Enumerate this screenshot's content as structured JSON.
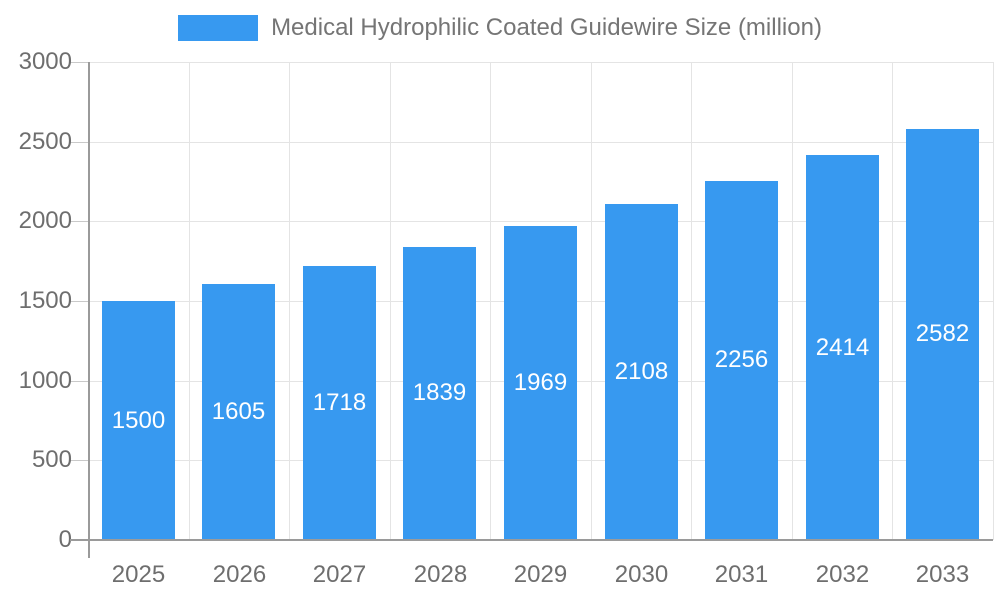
{
  "chart_data": {
    "type": "bar",
    "title": "Medical Hydrophilic Coated Guidewire Size (million)",
    "categories": [
      "2025",
      "2026",
      "2027",
      "2028",
      "2029",
      "2030",
      "2031",
      "2032",
      "2033"
    ],
    "values": [
      1500,
      1605,
      1718,
      1839,
      1969,
      2108,
      2256,
      2414,
      2582
    ],
    "value_labels": [
      "1500",
      "1605",
      "1718",
      "1839",
      "1969",
      "2108",
      "2256",
      "2414",
      "2582"
    ],
    "xlabel": "",
    "ylabel": "",
    "ylim": [
      0,
      3000
    ],
    "yticks": [
      0,
      500,
      1000,
      1500,
      2000,
      2500,
      3000
    ],
    "ytick_labels": [
      "0",
      "500",
      "1000",
      "1500",
      "2000",
      "2500",
      "3000"
    ],
    "grid": true,
    "legend_position": "top",
    "legend_entries": [
      "Medical Hydrophilic Coated Guidewire Size (million)"
    ],
    "colors": {
      "bar": "#3799F0",
      "bar_value_text": "#FFFFFF",
      "title_text": "#757575",
      "axis_tick_text": "#6E6E6E",
      "gridline": "#E4E4E4",
      "axis_line": "#9A9A9A"
    }
  }
}
